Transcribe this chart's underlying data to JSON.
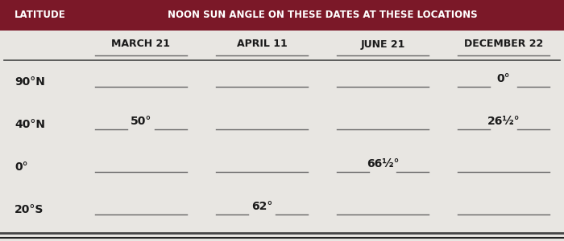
{
  "header_bg_color": "#7B1828",
  "header_text_color": "#FFFFFF",
  "table_bg_color": "#E8E6E2",
  "cell_text_color": "#1A1A1A",
  "lat_col_header": "LATITUDE",
  "main_header": "NOON SUN ANGLE ON THESE DATES AT THESE LOCATIONS",
  "date_columns": [
    "MARCH 21",
    "APRIL 11",
    "JUNE 21",
    "DECEMBER 22"
  ],
  "latitudes": [
    "90°N",
    "40°N",
    "0°",
    "20°S"
  ],
  "values": {
    "90°N": {
      "MARCH 21": null,
      "APRIL 11": null,
      "JUNE 21": null,
      "DECEMBER 22": "0°"
    },
    "40°N": {
      "MARCH 21": "50°",
      "APRIL 11": null,
      "JUNE 21": null,
      "DECEMBER 22": "26½°"
    },
    "0°": {
      "MARCH 21": null,
      "APRIL 11": null,
      "JUNE 21": "66½°",
      "DECEMBER 22": null
    },
    "20°S": {
      "MARCH 21": null,
      "APRIL 11": "62°",
      "JUNE 21": null,
      "DECEMBER 22": null
    }
  },
  "line_color": "#666666",
  "header_fontsize": 8.5,
  "date_fontsize": 9,
  "lat_fontsize": 10,
  "value_fontsize": 10,
  "border_color": "#444444"
}
